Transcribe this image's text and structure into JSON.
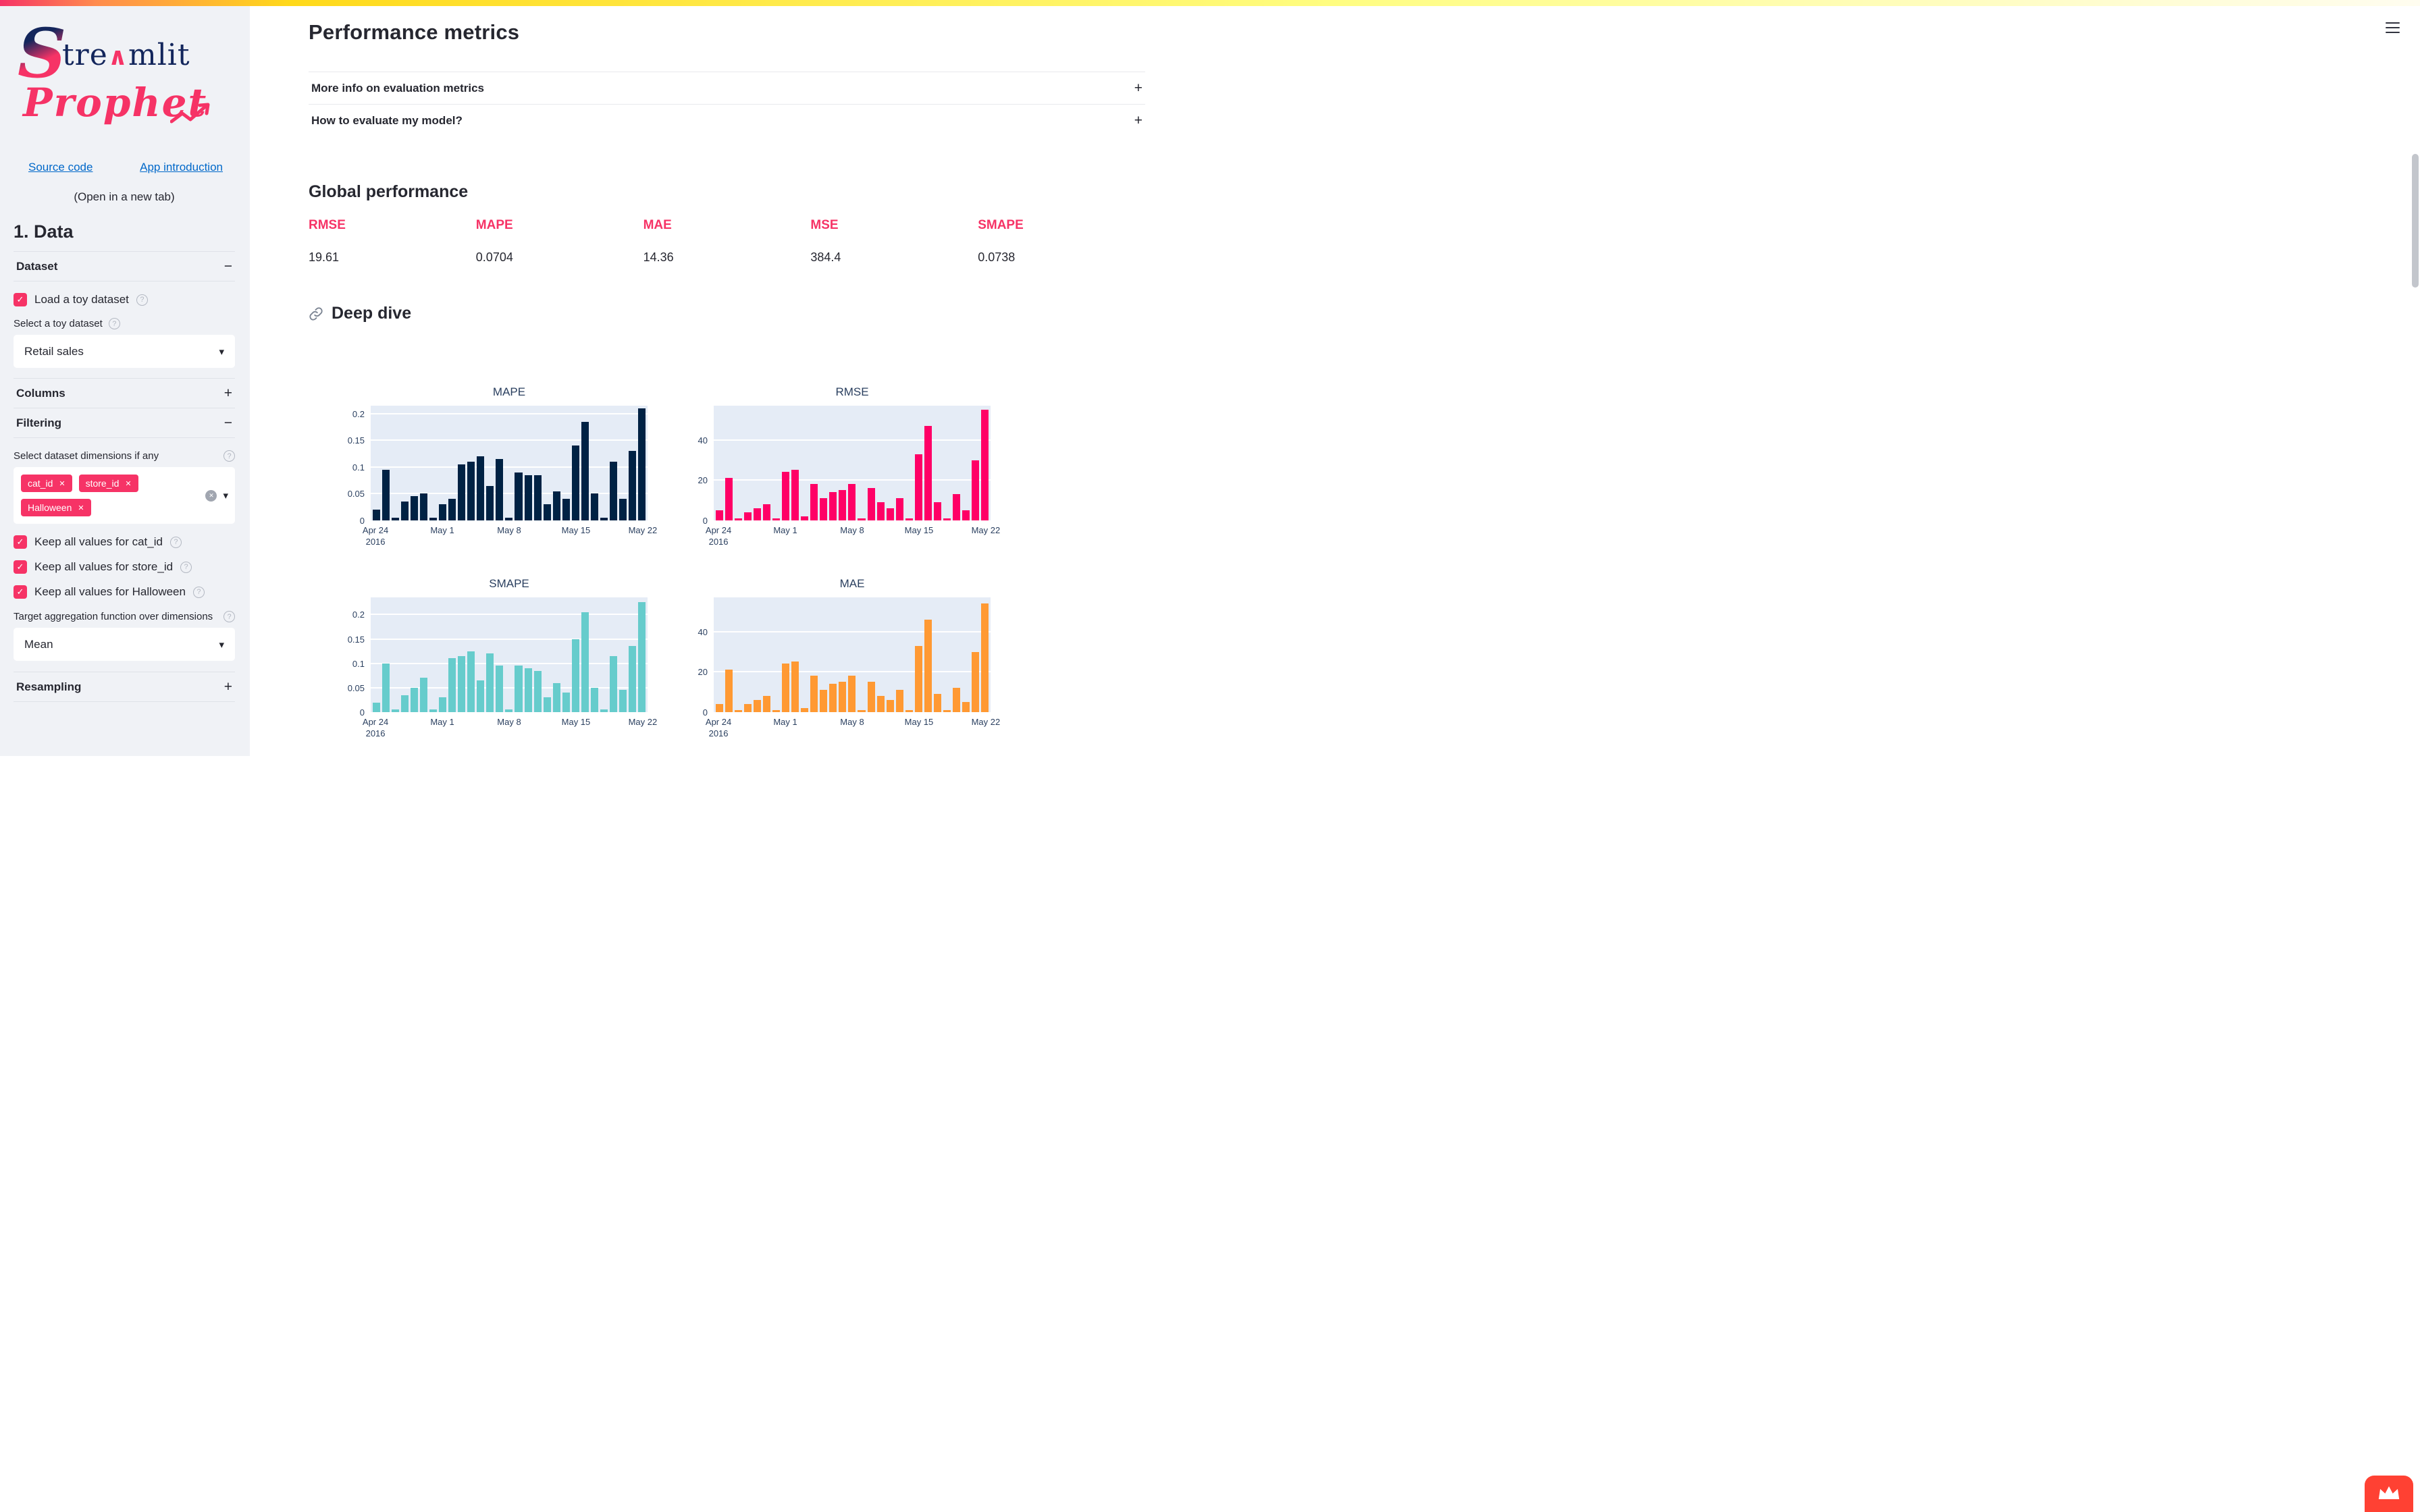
{
  "icons": {
    "plus": "+",
    "minus": "−",
    "check": "✓",
    "caret_down": "▾",
    "question": "?",
    "close": "✕"
  },
  "sidebar": {
    "logo": {
      "part1": "S",
      "part2": "tre",
      "caret": "∧",
      "part3": "mlit",
      "line2": "Prophet"
    },
    "links": [
      "Source code",
      "App introduction"
    ],
    "open_note": "(Open in a new tab)",
    "section_title": "1. Data",
    "dataset": {
      "label": "Dataset",
      "state_icon": "−",
      "toy_checkbox": "Load a toy dataset",
      "select_label": "Select a toy dataset",
      "select_value": "Retail sales"
    },
    "columns": {
      "label": "Columns",
      "state_icon": "+"
    },
    "filtering": {
      "label": "Filtering",
      "state_icon": "−",
      "dimensions_label": "Select dataset dimensions if any",
      "tags": [
        "cat_id",
        "store_id",
        "Halloween"
      ],
      "keep_checkboxes": [
        "Keep all values for cat_id",
        "Keep all values for store_id",
        "Keep all values for Halloween"
      ],
      "agg_label": "Target aggregation function over dimensions",
      "agg_value": "Mean"
    },
    "resampling": {
      "label": "Resampling",
      "state_icon": "+"
    }
  },
  "main": {
    "title": "Performance metrics",
    "expanders": [
      {
        "label": "More info on evaluation metrics",
        "state_icon": "+"
      },
      {
        "label": "How to evaluate my model?",
        "state_icon": "+"
      }
    ],
    "global_performance_title": "Global performance",
    "metrics": [
      {
        "label": "RMSE",
        "value": "19.61"
      },
      {
        "label": "MAPE",
        "value": "0.0704"
      },
      {
        "label": "MAE",
        "value": "14.36"
      },
      {
        "label": "MSE",
        "value": "384.4"
      },
      {
        "label": "SMAPE",
        "value": "0.0738"
      }
    ],
    "deep_dive_title": "Deep dive"
  },
  "chart_data": [
    {
      "type": "bar",
      "title": "MAPE",
      "color": "#002244",
      "x": [
        "2016-04-24",
        "2016-04-25",
        "2016-04-26",
        "2016-04-27",
        "2016-04-28",
        "2016-04-29",
        "2016-04-30",
        "2016-05-01",
        "2016-05-02",
        "2016-05-03",
        "2016-05-04",
        "2016-05-05",
        "2016-05-06",
        "2016-05-07",
        "2016-05-08",
        "2016-05-09",
        "2016-05-10",
        "2016-05-11",
        "2016-05-12",
        "2016-05-13",
        "2016-05-14",
        "2016-05-15",
        "2016-05-16",
        "2016-05-17",
        "2016-05-18",
        "2016-05-19",
        "2016-05-20",
        "2016-05-21",
        "2016-05-22"
      ],
      "values": [
        0.02,
        0.095,
        0.005,
        0.035,
        0.045,
        0.05,
        0.005,
        0.03,
        0.04,
        0.105,
        0.11,
        0.12,
        0.065,
        0.115,
        0.005,
        0.09,
        0.085,
        0.085,
        0.03,
        0.055,
        0.04,
        0.14,
        0.185,
        0.05,
        0.005,
        0.11,
        0.04,
        0.13,
        0.21
      ],
      "ymax": 0.215,
      "yticks": [
        0,
        0.05,
        0.1,
        0.15,
        0.2
      ],
      "xticks": [
        {
          "index": 0,
          "label": "Apr 24",
          "sublabel": "2016"
        },
        {
          "index": 7,
          "label": "May 1"
        },
        {
          "index": 14,
          "label": "May 8"
        },
        {
          "index": 21,
          "label": "May 15"
        },
        {
          "index": 28,
          "label": "May 22"
        }
      ]
    },
    {
      "type": "bar",
      "title": "RMSE",
      "color": "#ff0066",
      "x": [
        "2016-04-24",
        "2016-04-25",
        "2016-04-26",
        "2016-04-27",
        "2016-04-28",
        "2016-04-29",
        "2016-04-30",
        "2016-05-01",
        "2016-05-02",
        "2016-05-03",
        "2016-05-04",
        "2016-05-05",
        "2016-05-06",
        "2016-05-07",
        "2016-05-08",
        "2016-05-09",
        "2016-05-10",
        "2016-05-11",
        "2016-05-12",
        "2016-05-13",
        "2016-05-14",
        "2016-05-15",
        "2016-05-16",
        "2016-05-17",
        "2016-05-18",
        "2016-05-19",
        "2016-05-20",
        "2016-05-21",
        "2016-05-22"
      ],
      "values": [
        5,
        21,
        1,
        4,
        6,
        8,
        1,
        24,
        25,
        2,
        18,
        11,
        14,
        15,
        18,
        1,
        16,
        9,
        6,
        11,
        1,
        33,
        47,
        9,
        1,
        13,
        5,
        30,
        55
      ],
      "ymax": 57,
      "yticks": [
        0,
        20,
        40
      ],
      "xticks": [
        {
          "index": 0,
          "label": "Apr 24",
          "sublabel": "2016"
        },
        {
          "index": 7,
          "label": "May 1"
        },
        {
          "index": 14,
          "label": "May 8"
        },
        {
          "index": 21,
          "label": "May 15"
        },
        {
          "index": 28,
          "label": "May 22"
        }
      ]
    },
    {
      "type": "bar",
      "title": "SMAPE",
      "color": "#66cccc",
      "x": [
        "2016-04-24",
        "2016-04-25",
        "2016-04-26",
        "2016-04-27",
        "2016-04-28",
        "2016-04-29",
        "2016-04-30",
        "2016-05-01",
        "2016-05-02",
        "2016-05-03",
        "2016-05-04",
        "2016-05-05",
        "2016-05-06",
        "2016-05-07",
        "2016-05-08",
        "2016-05-09",
        "2016-05-10",
        "2016-05-11",
        "2016-05-12",
        "2016-05-13",
        "2016-05-14",
        "2016-05-15",
        "2016-05-16",
        "2016-05-17",
        "2016-05-18",
        "2016-05-19",
        "2016-05-20",
        "2016-05-21",
        "2016-05-22"
      ],
      "values": [
        0.02,
        0.1,
        0.005,
        0.035,
        0.05,
        0.07,
        0.005,
        0.03,
        0.11,
        0.115,
        0.125,
        0.065,
        0.12,
        0.095,
        0.005,
        0.095,
        0.09,
        0.085,
        0.03,
        0.06,
        0.04,
        0.15,
        0.205,
        0.05,
        0.005,
        0.115,
        0.045,
        0.135,
        0.225
      ],
      "ymax": 0.235,
      "yticks": [
        0,
        0.05,
        0.1,
        0.15,
        0.2
      ],
      "xticks": [
        {
          "index": 0,
          "label": "Apr 24",
          "sublabel": "2016"
        },
        {
          "index": 7,
          "label": "May 1"
        },
        {
          "index": 14,
          "label": "May 8"
        },
        {
          "index": 21,
          "label": "May 15"
        },
        {
          "index": 28,
          "label": "May 22"
        }
      ]
    },
    {
      "type": "bar",
      "title": "MAE",
      "color": "#ff9933",
      "x": [
        "2016-04-24",
        "2016-04-25",
        "2016-04-26",
        "2016-04-27",
        "2016-04-28",
        "2016-04-29",
        "2016-04-30",
        "2016-05-01",
        "2016-05-02",
        "2016-05-03",
        "2016-05-04",
        "2016-05-05",
        "2016-05-06",
        "2016-05-07",
        "2016-05-08",
        "2016-05-09",
        "2016-05-10",
        "2016-05-11",
        "2016-05-12",
        "2016-05-13",
        "2016-05-14",
        "2016-05-15",
        "2016-05-16",
        "2016-05-17",
        "2016-05-18",
        "2016-05-19",
        "2016-05-20",
        "2016-05-21",
        "2016-05-22"
      ],
      "values": [
        4,
        21,
        1,
        4,
        6,
        8,
        1,
        24,
        25,
        2,
        18,
        11,
        14,
        15,
        18,
        1,
        15,
        8,
        6,
        11,
        1,
        33,
        46,
        9,
        1,
        12,
        5,
        30,
        54
      ],
      "ymax": 57,
      "yticks": [
        0,
        20,
        40
      ],
      "xticks": [
        {
          "index": 0,
          "label": "Apr 24",
          "sublabel": "2016"
        },
        {
          "index": 7,
          "label": "May 1"
        },
        {
          "index": 14,
          "label": "May 8"
        },
        {
          "index": 21,
          "label": "May 15"
        },
        {
          "index": 28,
          "label": "May 22"
        }
      ]
    }
  ],
  "colors": {
    "accent_pink": "#f63366",
    "chart_navy": "#002244",
    "chart_pink": "#ff0066",
    "chart_teal": "#66cccc",
    "chart_orange": "#ff9933",
    "sidebar_bg": "#f0f2f6",
    "badge_red": "#ff4133"
  }
}
